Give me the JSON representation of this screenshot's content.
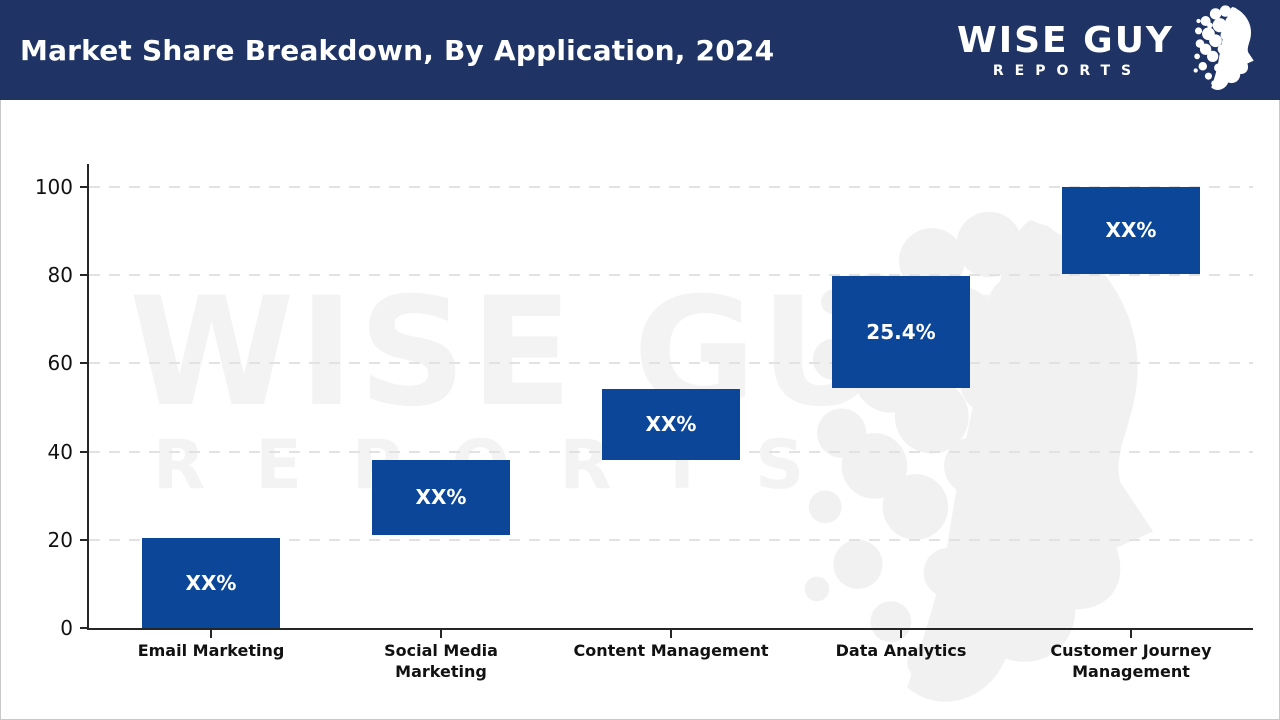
{
  "header": {
    "title": "Market Share Breakdown, By Application, 2024",
    "bg_color": "#1f3464",
    "logo": {
      "line1": "WISE GUY",
      "line2": "REPORTS"
    }
  },
  "watermark": {
    "line1": "WISE GUY",
    "line2": "REPORTS"
  },
  "chart_data": {
    "type": "bar",
    "subtype": "waterfall",
    "title": "Market Share Breakdown, By Application, 2024",
    "categories": [
      "Email Marketing",
      "Social Media Marketing",
      "Content Management",
      "Data Analytics",
      "Customer Journey Management"
    ],
    "category_label_lines": [
      [
        "Email Marketing"
      ],
      [
        "Social Media",
        "Marketing"
      ],
      [
        "Content Management"
      ],
      [
        "Data Analytics"
      ],
      [
        "Customer Journey",
        "Management"
      ]
    ],
    "segments": [
      {
        "category": "Email Marketing",
        "start": 0,
        "end": 20.5,
        "label": "XX%"
      },
      {
        "category": "Social Media Marketing",
        "start": 21,
        "end": 38.2,
        "label": "XX%"
      },
      {
        "category": "Content Management",
        "start": 38.2,
        "end": 54.3,
        "label": "XX%"
      },
      {
        "category": "Data Analytics",
        "start": 54.4,
        "end": 79.8,
        "label": "25.4%"
      },
      {
        "category": "Customer Journey Management",
        "start": 80.3,
        "end": 100,
        "label": "XX%"
      }
    ],
    "ylim": [
      0,
      100
    ],
    "yticks": [
      0,
      20,
      40,
      60,
      80,
      100
    ],
    "grid": true,
    "grid_style": "dashed",
    "legend": "none",
    "bar_color": "#0b4699",
    "bar_label_color": "#ffffff",
    "axis_color": "#262626"
  }
}
